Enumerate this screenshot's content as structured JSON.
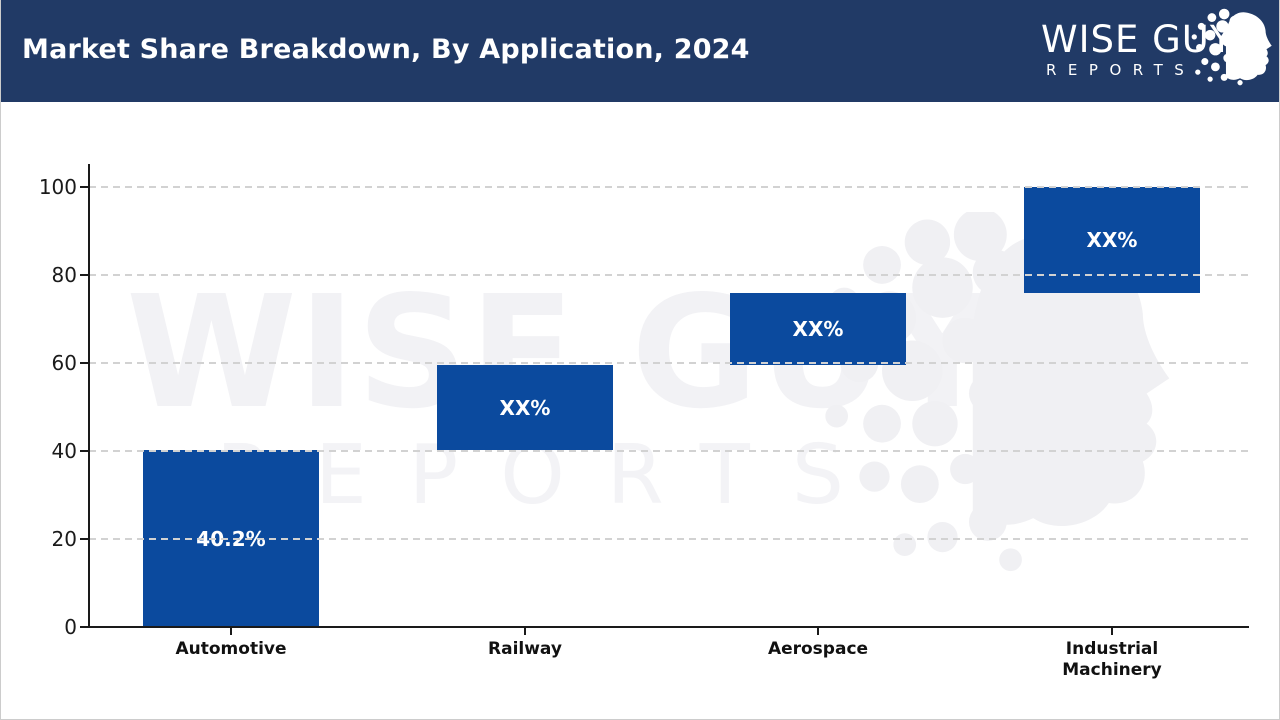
{
  "header": {
    "title": "Market Share Breakdown, By Application, 2024",
    "logo": {
      "line1": "WISE GUY",
      "line2": "REPORTS"
    }
  },
  "watermark": {
    "line1": "WISE GUY",
    "line2": "REPORTS"
  },
  "chart_data": {
    "type": "waterfall",
    "title": "Market Share Breakdown, By Application, 2024",
    "categories": [
      "Automotive",
      "Railway",
      "Aerospace",
      "Industrial Machinery"
    ],
    "segments": [
      {
        "category": "Automotive",
        "start": 0,
        "end": 40.2,
        "label": "40.2%"
      },
      {
        "category": "Railway",
        "start": 40.2,
        "end": 59.5,
        "label": "XX%"
      },
      {
        "category": "Aerospace",
        "start": 59.5,
        "end": 76.0,
        "label": "XX%"
      },
      {
        "category": "Industrial Machinery",
        "start": 76.0,
        "end": 100,
        "label": "XX%"
      }
    ],
    "y_ticks": [
      0,
      20,
      40,
      60,
      80,
      100
    ],
    "ylim": [
      0,
      106
    ],
    "grid": "horizontal-dashed",
    "legend": "none",
    "bar_color": "#0b4a9e",
    "value_label_color": "#ffffff"
  },
  "colors": {
    "header_bg": "#213a66",
    "bar": "#0b4a9e",
    "watermark": "#f2f2f5",
    "gridline": "#d2d2d2",
    "axis": "#1a1a1a"
  }
}
